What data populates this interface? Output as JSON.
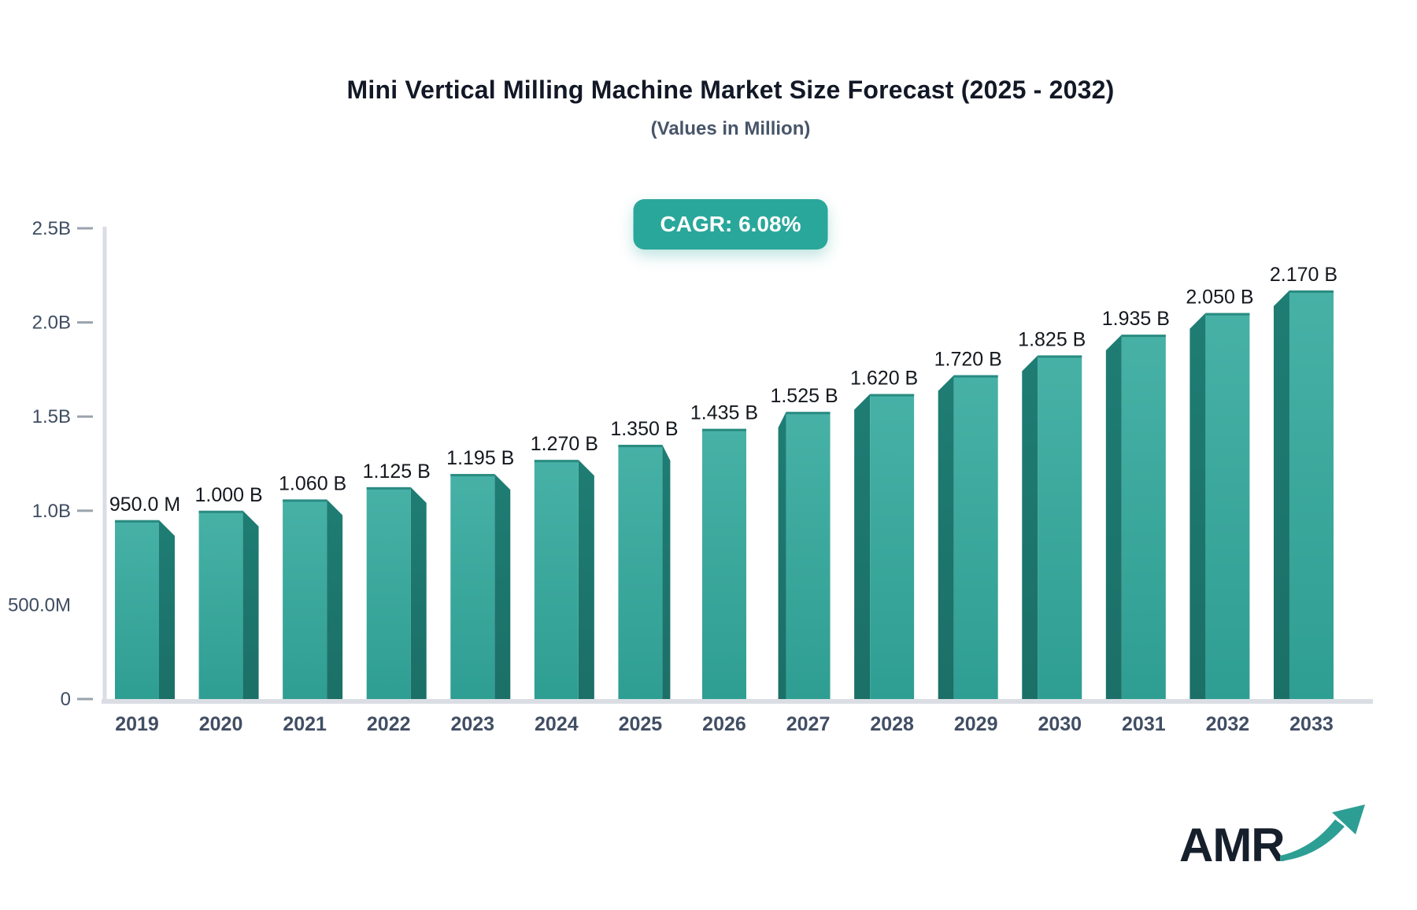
{
  "header": {
    "title": "Mini Vertical Milling Machine Market Size Forecast (2025 - 2032)",
    "subtitle": "(Values in Million)",
    "cagr_badge": "CAGR: 6.08%"
  },
  "logo": {
    "text": "AMR",
    "arrow_icon": "trend-up-arrow",
    "arrow_color": "#2d9e94",
    "text_color": "#16202c"
  },
  "chart_data": {
    "type": "bar",
    "title": "Mini Vertical Milling Machine Market Size Forecast (2025 - 2032)",
    "subtitle": "(Values in Million)",
    "cagr_percent": "6.08%",
    "categories": [
      "2019",
      "2020",
      "2021",
      "2022",
      "2023",
      "2024",
      "2025",
      "2026",
      "2027",
      "2028",
      "2029",
      "2030",
      "2031",
      "2032",
      "2033"
    ],
    "values_billions": [
      0.95,
      1.0,
      1.06,
      1.125,
      1.195,
      1.27,
      1.35,
      1.435,
      1.525,
      1.62,
      1.72,
      1.825,
      1.935,
      2.05,
      2.17
    ],
    "value_labels": [
      "950.0 M",
      "1.000 B",
      "1.060 B",
      "1.125 B",
      "1.195 B",
      "1.270 B",
      "1.350 B",
      "1.435 B",
      "1.525 B",
      "1.620 B",
      "1.720 B",
      "1.825 B",
      "1.935 B",
      "2.050 B",
      "2.170 B"
    ],
    "y_ticks": [
      {
        "value": 2.5,
        "label": "2.5B",
        "dash": true
      },
      {
        "value": 2.0,
        "label": "2.0B",
        "dash": true
      },
      {
        "value": 1.5,
        "label": "1.5B",
        "dash": true
      },
      {
        "value": 1.0,
        "label": "1.0B",
        "dash": true
      },
      {
        "value": 0.5,
        "label": "500.0M",
        "dash": false
      },
      {
        "value": 0,
        "label": "0",
        "dash": true
      }
    ],
    "ylim": [
      0,
      2.5
    ],
    "xlabel": "",
    "ylabel": "",
    "grid": false,
    "legend": "none",
    "style": "3d-beveled-columns",
    "colors": {
      "bar_face_top": "#47b1a6",
      "bar_face_bottom": "#2f9e92",
      "bar_side_dark": "#1e7d74",
      "bar_side_dark2": "#1b6f67",
      "bar_top_edge": "#27877d",
      "axis_line": "#dadee4",
      "tick_dash": "#9aa3ae",
      "tick_text": "#3f4c61",
      "year_text": "#414e63",
      "value_text": "#14181e",
      "badge_bg": "#2aa79b"
    }
  }
}
